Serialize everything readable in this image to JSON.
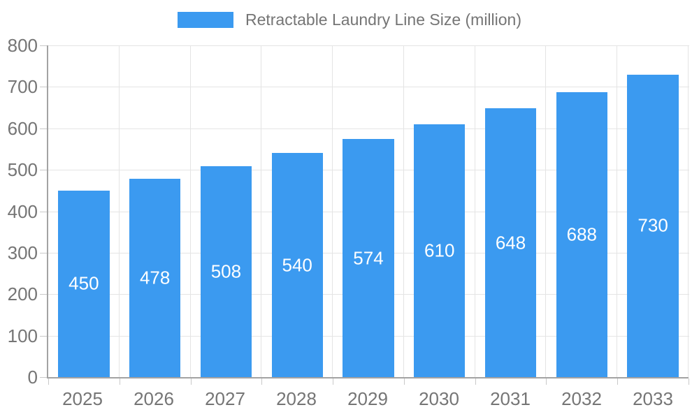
{
  "colors": {
    "bar": "#3B9AF0",
    "grid": "#E4E4E4",
    "axis": "#A3A3A3",
    "tick": "#C9C9C9",
    "text": "#757575",
    "value_label": "#FFFFFF",
    "background": "#FFFFFF"
  },
  "legend": {
    "label": "Retractable Laundry Line Size (million)"
  },
  "chart_data": {
    "type": "bar",
    "title": "Retractable Laundry Line Size (million)",
    "categories": [
      "2025",
      "2026",
      "2027",
      "2028",
      "2029",
      "2030",
      "2031",
      "2032",
      "2033"
    ],
    "series": [
      {
        "name": "Retractable Laundry Line Size (million)",
        "values": [
          450,
          478,
          508,
          540,
          574,
          610,
          648,
          688,
          730
        ]
      }
    ],
    "xlabel": "",
    "ylabel": "",
    "ylim": [
      0,
      800
    ],
    "ytick_step": 100,
    "grid": true,
    "legend_position": "top",
    "value_labels": "inside-center"
  }
}
